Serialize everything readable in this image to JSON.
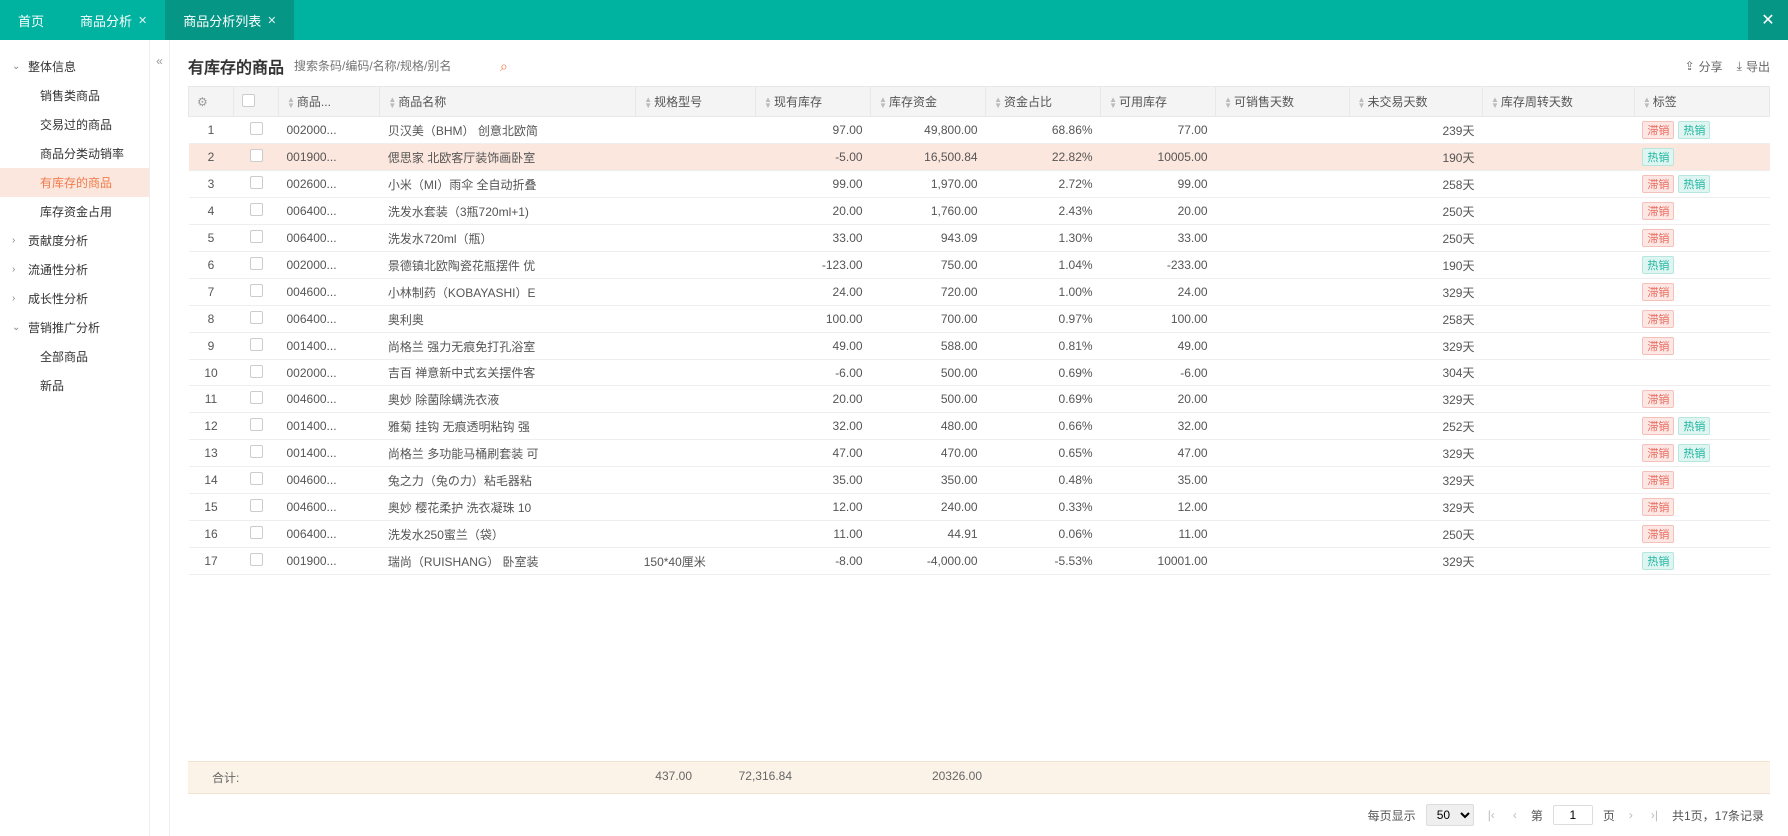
{
  "colors": {
    "primary": "#00B3A1",
    "primaryDark": "#059686",
    "accentBg": "#FCE7DE",
    "accentFg": "#F07B4B"
  },
  "tabs": {
    "items": [
      {
        "label": "首页",
        "closeable": false,
        "active": false
      },
      {
        "label": "商品分析",
        "closeable": true,
        "active": false
      },
      {
        "label": "商品分析列表",
        "closeable": true,
        "active": true
      }
    ]
  },
  "sidebar": {
    "groups": [
      {
        "title": "整体信息",
        "expanded": true,
        "items": [
          {
            "label": "销售类商品",
            "active": false
          },
          {
            "label": "交易过的商品",
            "active": false
          },
          {
            "label": "商品分类动销率",
            "active": false
          },
          {
            "label": "有库存的商品",
            "active": true
          },
          {
            "label": "库存资金占用",
            "active": false
          }
        ]
      },
      {
        "title": "贡献度分析",
        "expanded": false,
        "items": []
      },
      {
        "title": "流通性分析",
        "expanded": false,
        "items": []
      },
      {
        "title": "成长性分析",
        "expanded": false,
        "items": []
      },
      {
        "title": "营销推广分析",
        "expanded": true,
        "items": [
          {
            "label": "全部商品",
            "active": false
          },
          {
            "label": "新品",
            "active": false
          }
        ]
      }
    ]
  },
  "toolbar": {
    "title": "有库存的商品",
    "search_placeholder": "搜索条码/编码/名称/规格/别名",
    "share_label": "分享",
    "export_label": "导出"
  },
  "table": {
    "columns": [
      {
        "label": "⚙",
        "key": "gear",
        "align": "center",
        "sortable": false
      },
      {
        "label": "",
        "key": "check",
        "align": "center",
        "sortable": false
      },
      {
        "label": "商品...",
        "key": "code",
        "align": "left",
        "sortable": true
      },
      {
        "label": "商品名称",
        "key": "name",
        "align": "left",
        "sortable": true
      },
      {
        "label": "规格型号",
        "key": "spec",
        "align": "left",
        "sortable": true
      },
      {
        "label": "现有库存",
        "key": "stock",
        "align": "right",
        "sortable": true
      },
      {
        "label": "库存资金",
        "key": "fund",
        "align": "right",
        "sortable": true
      },
      {
        "label": "资金占比",
        "key": "ratio",
        "align": "right",
        "sortable": true
      },
      {
        "label": "可用库存",
        "key": "avail",
        "align": "right",
        "sortable": true
      },
      {
        "label": "可销售天数",
        "key": "sell_days",
        "align": "right",
        "sortable": true
      },
      {
        "label": "未交易天数",
        "key": "notrade",
        "align": "right",
        "sortable": true
      },
      {
        "label": "库存周转天数",
        "key": "turn",
        "align": "right",
        "sortable": true
      },
      {
        "label": "标签",
        "key": "tags",
        "align": "left",
        "sortable": true
      }
    ],
    "rows": [
      {
        "idx": "1",
        "code": "002000...",
        "name": "贝汉美（BHM） 创意北欧简",
        "spec": "",
        "stock": "97.00",
        "fund": "49,800.00",
        "ratio": "68.86%",
        "avail": "77.00",
        "sell_days": "",
        "notrade": "239天",
        "turn": "",
        "tags": [
          "滞销",
          "热销"
        ],
        "highlight": false
      },
      {
        "idx": "2",
        "code": "001900...",
        "name": "偲思家 北欧客厅装饰画卧室",
        "spec": "",
        "stock": "-5.00",
        "fund": "16,500.84",
        "ratio": "22.82%",
        "avail": "10005.00",
        "sell_days": "",
        "notrade": "190天",
        "turn": "",
        "tags": [
          "热销"
        ],
        "highlight": true
      },
      {
        "idx": "3",
        "code": "002600...",
        "name": "小米（MI）雨伞 全自动折叠",
        "spec": "",
        "stock": "99.00",
        "fund": "1,970.00",
        "ratio": "2.72%",
        "avail": "99.00",
        "sell_days": "",
        "notrade": "258天",
        "turn": "",
        "tags": [
          "滞销",
          "热销"
        ],
        "highlight": false
      },
      {
        "idx": "4",
        "code": "006400...",
        "name": "洗发水套装（3瓶720ml+1)",
        "spec": "",
        "stock": "20.00",
        "fund": "1,760.00",
        "ratio": "2.43%",
        "avail": "20.00",
        "sell_days": "",
        "notrade": "250天",
        "turn": "",
        "tags": [
          "滞销"
        ],
        "highlight": false
      },
      {
        "idx": "5",
        "code": "006400...",
        "name": "洗发水720ml（瓶）",
        "spec": "",
        "stock": "33.00",
        "fund": "943.09",
        "ratio": "1.30%",
        "avail": "33.00",
        "sell_days": "",
        "notrade": "250天",
        "turn": "",
        "tags": [
          "滞销"
        ],
        "highlight": false
      },
      {
        "idx": "6",
        "code": "002000...",
        "name": "景德镇北欧陶瓷花瓶摆件 优",
        "spec": "",
        "stock": "-123.00",
        "fund": "750.00",
        "ratio": "1.04%",
        "avail": "-233.00",
        "sell_days": "",
        "notrade": "190天",
        "turn": "",
        "tags": [
          "热销"
        ],
        "highlight": false
      },
      {
        "idx": "7",
        "code": "004600...",
        "name": "小林制药（KOBAYASHI）E",
        "spec": "",
        "stock": "24.00",
        "fund": "720.00",
        "ratio": "1.00%",
        "avail": "24.00",
        "sell_days": "",
        "notrade": "329天",
        "turn": "",
        "tags": [
          "滞销"
        ],
        "highlight": false
      },
      {
        "idx": "8",
        "code": "006400...",
        "name": "奥利奥",
        "spec": "",
        "stock": "100.00",
        "fund": "700.00",
        "ratio": "0.97%",
        "avail": "100.00",
        "sell_days": "",
        "notrade": "258天",
        "turn": "",
        "tags": [
          "滞销"
        ],
        "highlight": false
      },
      {
        "idx": "9",
        "code": "001400...",
        "name": "尚格兰 强力无痕免打孔浴室",
        "spec": "",
        "stock": "49.00",
        "fund": "588.00",
        "ratio": "0.81%",
        "avail": "49.00",
        "sell_days": "",
        "notrade": "329天",
        "turn": "",
        "tags": [
          "滞销"
        ],
        "highlight": false
      },
      {
        "idx": "10",
        "code": "002000...",
        "name": "吉百 禅意新中式玄关摆件客",
        "spec": "",
        "stock": "-6.00",
        "fund": "500.00",
        "ratio": "0.69%",
        "avail": "-6.00",
        "sell_days": "",
        "notrade": "304天",
        "turn": "",
        "tags": [],
        "highlight": false
      },
      {
        "idx": "11",
        "code": "004600...",
        "name": "奥妙 除菌除螨洗衣液",
        "spec": "",
        "stock": "20.00",
        "fund": "500.00",
        "ratio": "0.69%",
        "avail": "20.00",
        "sell_days": "",
        "notrade": "329天",
        "turn": "",
        "tags": [
          "滞销"
        ],
        "highlight": false
      },
      {
        "idx": "12",
        "code": "001400...",
        "name": "雅菊 挂钩 无痕透明粘钩 强",
        "spec": "",
        "stock": "32.00",
        "fund": "480.00",
        "ratio": "0.66%",
        "avail": "32.00",
        "sell_days": "",
        "notrade": "252天",
        "turn": "",
        "tags": [
          "滞销",
          "热销"
        ],
        "highlight": false
      },
      {
        "idx": "13",
        "code": "001400...",
        "name": "尚格兰 多功能马桶刷套装 可",
        "spec": "",
        "stock": "47.00",
        "fund": "470.00",
        "ratio": "0.65%",
        "avail": "47.00",
        "sell_days": "",
        "notrade": "329天",
        "turn": "",
        "tags": [
          "滞销",
          "热销"
        ],
        "highlight": false
      },
      {
        "idx": "14",
        "code": "004600...",
        "name": "兔之力（兔の力）粘毛器粘",
        "spec": "",
        "stock": "35.00",
        "fund": "350.00",
        "ratio": "0.48%",
        "avail": "35.00",
        "sell_days": "",
        "notrade": "329天",
        "turn": "",
        "tags": [
          "滞销"
        ],
        "highlight": false
      },
      {
        "idx": "15",
        "code": "004600...",
        "name": "奥妙 樱花柔护 洗衣凝珠 10",
        "spec": "",
        "stock": "12.00",
        "fund": "240.00",
        "ratio": "0.33%",
        "avail": "12.00",
        "sell_days": "",
        "notrade": "329天",
        "turn": "",
        "tags": [
          "滞销"
        ],
        "highlight": false
      },
      {
        "idx": "16",
        "code": "006400...",
        "name": "洗发水250蜜兰（袋）",
        "spec": "",
        "stock": "11.00",
        "fund": "44.91",
        "ratio": "0.06%",
        "avail": "11.00",
        "sell_days": "",
        "notrade": "250天",
        "turn": "",
        "tags": [
          "滞销"
        ],
        "highlight": false
      },
      {
        "idx": "17",
        "code": "001900...",
        "name": "瑞尚（RUISHANG） 卧室装",
        "spec": "150*40厘米",
        "stock": "-8.00",
        "fund": "-4,000.00",
        "ratio": "-5.53%",
        "avail": "10001.00",
        "sell_days": "",
        "notrade": "329天",
        "turn": "",
        "tags": [
          "热销"
        ],
        "highlight": false
      }
    ],
    "summary": {
      "label": "合计:",
      "stock": "437.00",
      "fund": "72,316.84",
      "avail": "20326.00"
    }
  },
  "pagination": {
    "per_page_label": "每页显示",
    "page_size": "50",
    "page_sep1": "第",
    "page_input": "1",
    "page_sep2": "页",
    "total_text": "共1页，17条记录"
  },
  "tag_map": {
    "滞销": "tag-red",
    "热销": "tag-cyan"
  }
}
